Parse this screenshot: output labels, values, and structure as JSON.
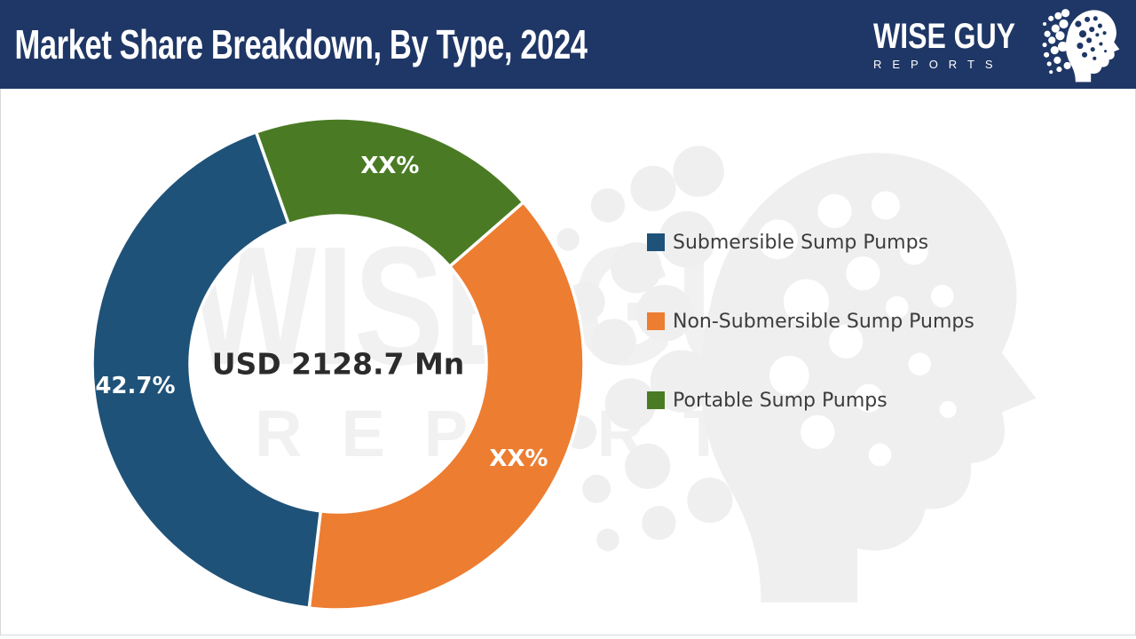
{
  "header": {
    "title": "Market Share Breakdown, By Type, 2024",
    "logo": {
      "line1": "WISE GUY",
      "line2": "REPORTS"
    }
  },
  "watermark": {
    "line1": "WISE GUY",
    "line2": "REPORTS"
  },
  "chart_data": {
    "type": "donut",
    "title": "Market Share Breakdown, By Type, 2024",
    "center_label": "USD 2128.7 Mn",
    "start_angle_deg": 340.5,
    "direction": "clockwise",
    "outer_radius": 277,
    "inner_radius": 167,
    "label_radius": 230,
    "segments": [
      {
        "name": "Portable Sump Pumps",
        "label": "XX%",
        "value_pct": 19.0,
        "color": "#4A7B24"
      },
      {
        "name": "Non-Submersible Sump Pumps",
        "label": "XX%",
        "value_pct": 38.3,
        "color": "#ED7D31"
      },
      {
        "name": "Submersible Sump Pumps",
        "label": "42.7%",
        "value_pct": 42.7,
        "color": "#1F5278"
      }
    ]
  },
  "legend": {
    "items": [
      {
        "label": "Submersible Sump Pumps",
        "color": "#1F5278"
      },
      {
        "label": "Non-Submersible Sump Pumps",
        "color": "#ED7D31"
      },
      {
        "label": "Portable Sump Pumps",
        "color": "#4A7B24"
      }
    ]
  }
}
